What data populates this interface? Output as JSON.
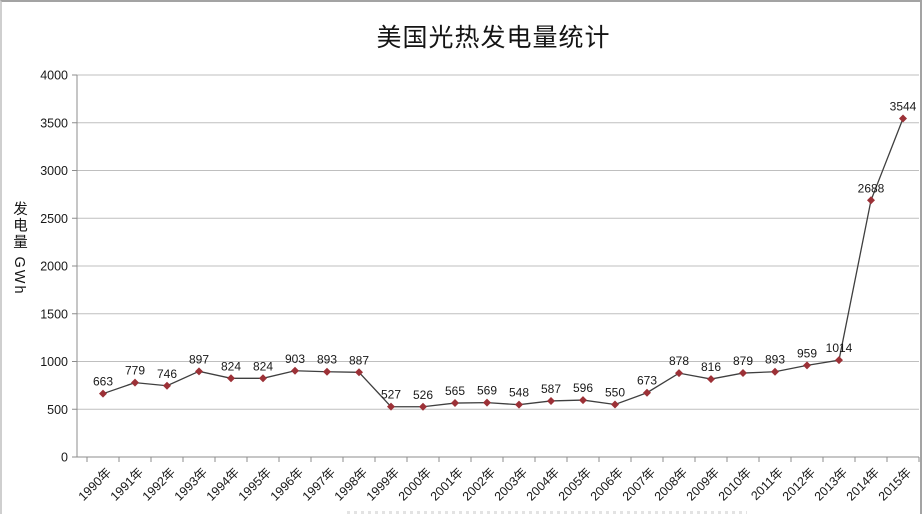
{
  "chart_data": {
    "type": "line",
    "title": "美国光热发电量统计",
    "ylabel": "发电量 GWh",
    "categories": [
      "1990年",
      "1991年",
      "1992年",
      "1993年",
      "1994年",
      "1995年",
      "1996年",
      "1997年",
      "1998年",
      "1999年",
      "2000年",
      "2001年",
      "2002年",
      "2003年",
      "2004年",
      "2005年",
      "2006年",
      "2007年",
      "2008年",
      "2009年",
      "2010年",
      "2011年",
      "2012年",
      "2013年",
      "2014年",
      "2015年"
    ],
    "values": [
      663,
      779,
      746,
      897,
      824,
      824,
      903,
      893,
      887,
      527,
      526,
      565,
      569,
      548,
      587,
      596,
      550,
      673,
      878,
      816,
      879,
      893,
      959,
      1014,
      2688,
      3544
    ],
    "ylim": [
      0,
      4000
    ],
    "ytick_step": 500,
    "grid": true,
    "legend": "none",
    "marker": "diamond",
    "data_labels": "above",
    "colors": {
      "line": "#3f3f3f",
      "marker": "#9c3137",
      "gridline": "#bfbfbf",
      "axis": "#8c8c8c",
      "text": "#191919"
    }
  }
}
